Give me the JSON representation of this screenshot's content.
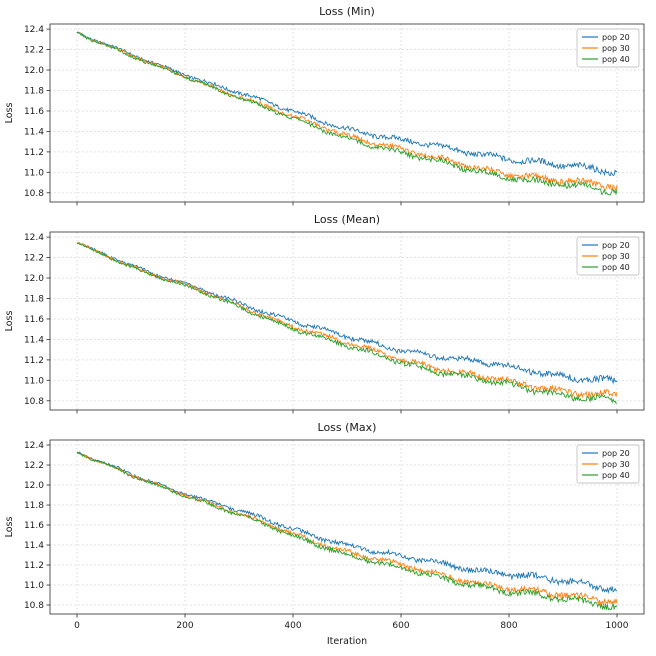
{
  "figure": {
    "background": "#ffffff",
    "grid_color": "#cccccc",
    "spine_color": "#2b2b2b",
    "text_color": "#1a1a1a"
  },
  "chart_data": [
    {
      "type": "line",
      "title": "Loss (Min)",
      "xlabel": "",
      "ylabel": "Loss",
      "xlim": [
        -50,
        1050
      ],
      "ylim": [
        10.71,
        12.45
      ],
      "xticks": [
        0,
        200,
        400,
        600,
        800,
        1000
      ],
      "yticks": [
        10.8,
        11.0,
        11.2,
        11.4,
        11.6,
        11.8,
        12.0,
        12.2,
        12.4
      ],
      "grid": true,
      "legend_position": "upper right",
      "x": [
        0,
        25,
        50,
        100,
        150,
        200,
        300,
        400,
        500,
        600,
        700,
        800,
        900,
        1000
      ],
      "series": [
        {
          "name": "pop 20",
          "color": "#1f77b4",
          "values": [
            12.37,
            12.31,
            12.26,
            12.15,
            12.05,
            11.96,
            11.78,
            11.59,
            11.43,
            11.31,
            11.22,
            11.14,
            11.06,
            11.0
          ]
        },
        {
          "name": "pop 30",
          "color": "#ff7f0e",
          "values": [
            12.37,
            12.31,
            12.25,
            12.14,
            12.04,
            11.94,
            11.74,
            11.54,
            11.37,
            11.22,
            11.09,
            10.99,
            10.91,
            10.86
          ]
        },
        {
          "name": "pop 40",
          "color": "#2ca02c",
          "values": [
            12.37,
            12.3,
            12.25,
            12.13,
            12.03,
            11.94,
            11.73,
            11.52,
            11.34,
            11.19,
            11.06,
            10.96,
            10.87,
            10.81
          ]
        }
      ]
    },
    {
      "type": "line",
      "title": "Loss (Mean)",
      "xlabel": "",
      "ylabel": "Loss",
      "xlim": [
        -50,
        1050
      ],
      "ylim": [
        10.71,
        12.45
      ],
      "xticks": [
        0,
        200,
        400,
        600,
        800,
        1000
      ],
      "yticks": [
        10.8,
        11.0,
        11.2,
        11.4,
        11.6,
        11.8,
        12.0,
        12.2,
        12.4
      ],
      "grid": true,
      "legend_position": "upper right",
      "x": [
        0,
        25,
        50,
        100,
        150,
        200,
        300,
        400,
        500,
        600,
        700,
        800,
        900,
        1000
      ],
      "series": [
        {
          "name": "pop 20",
          "color": "#1f77b4",
          "values": [
            12.35,
            12.29,
            12.24,
            12.13,
            12.03,
            11.94,
            11.76,
            11.58,
            11.42,
            11.3,
            11.21,
            11.13,
            11.05,
            10.98
          ]
        },
        {
          "name": "pop 30",
          "color": "#ff7f0e",
          "values": [
            12.35,
            12.29,
            12.23,
            12.12,
            12.02,
            11.93,
            11.73,
            11.53,
            11.36,
            11.21,
            11.08,
            10.98,
            10.9,
            10.85
          ]
        },
        {
          "name": "pop 40",
          "color": "#2ca02c",
          "values": [
            12.35,
            12.28,
            12.23,
            12.11,
            12.01,
            11.92,
            11.72,
            11.51,
            11.33,
            11.18,
            11.05,
            10.95,
            10.86,
            10.8
          ]
        }
      ]
    },
    {
      "type": "line",
      "title": "Loss (Max)",
      "xlabel": "Iteration",
      "ylabel": "Loss",
      "xlim": [
        -50,
        1050
      ],
      "ylim": [
        10.71,
        12.45
      ],
      "xticks": [
        0,
        200,
        400,
        600,
        800,
        1000
      ],
      "yticks": [
        10.8,
        11.0,
        11.2,
        11.4,
        11.6,
        11.8,
        12.0,
        12.2,
        12.4
      ],
      "grid": true,
      "legend_position": "upper right",
      "x": [
        0,
        25,
        50,
        100,
        150,
        200,
        300,
        400,
        500,
        600,
        700,
        800,
        900,
        1000
      ],
      "series": [
        {
          "name": "pop 20",
          "color": "#1f77b4",
          "values": [
            12.33,
            12.27,
            12.22,
            12.11,
            12.01,
            11.92,
            11.74,
            11.56,
            11.4,
            11.28,
            11.19,
            11.11,
            11.03,
            10.97
          ]
        },
        {
          "name": "pop 30",
          "color": "#ff7f0e",
          "values": [
            12.33,
            12.27,
            12.21,
            12.1,
            12.0,
            11.91,
            11.71,
            11.51,
            11.34,
            11.19,
            11.07,
            10.97,
            10.89,
            10.84
          ]
        },
        {
          "name": "pop 40",
          "color": "#2ca02c",
          "values": [
            12.33,
            12.26,
            12.21,
            12.09,
            11.99,
            11.9,
            11.7,
            11.49,
            11.31,
            11.16,
            11.04,
            10.94,
            10.85,
            10.79
          ]
        }
      ]
    }
  ]
}
